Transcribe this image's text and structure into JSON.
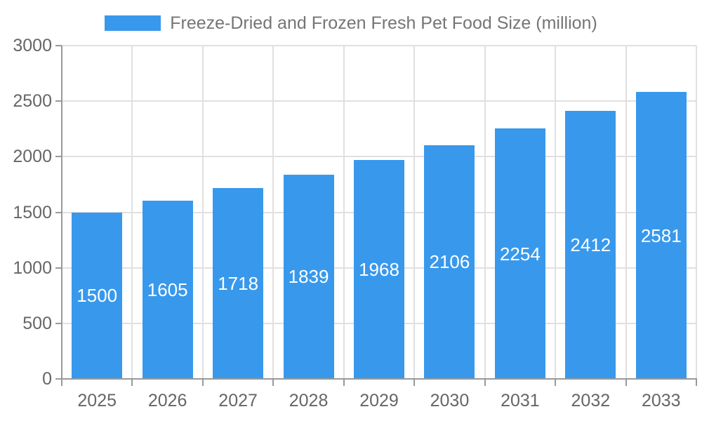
{
  "legend": {
    "label": "Freeze-Dried and Frozen Fresh Pet Food Size (million)"
  },
  "chart_data": {
    "type": "bar",
    "title": "Freeze-Dried and Frozen Fresh Pet Food Size (million)",
    "categories": [
      "2025",
      "2026",
      "2027",
      "2028",
      "2029",
      "2030",
      "2031",
      "2032",
      "2033"
    ],
    "values": [
      1500,
      1605,
      1718,
      1839,
      1968,
      2106,
      2254,
      2412,
      2581
    ],
    "xlabel": "",
    "ylabel": "",
    "ylim": [
      0,
      3000
    ],
    "yticks": [
      0,
      500,
      1000,
      1500,
      2000,
      2500,
      3000
    ],
    "grid": true,
    "value_labels_shown": true,
    "legend_position": "top-center",
    "colors": {
      "bar": "#3899ec",
      "grid": "#e0e0e0",
      "axis": "#999999",
      "axis_label": "#666666",
      "title": "#757575",
      "value_label": "#ffffff",
      "background": "#ffffff"
    }
  }
}
